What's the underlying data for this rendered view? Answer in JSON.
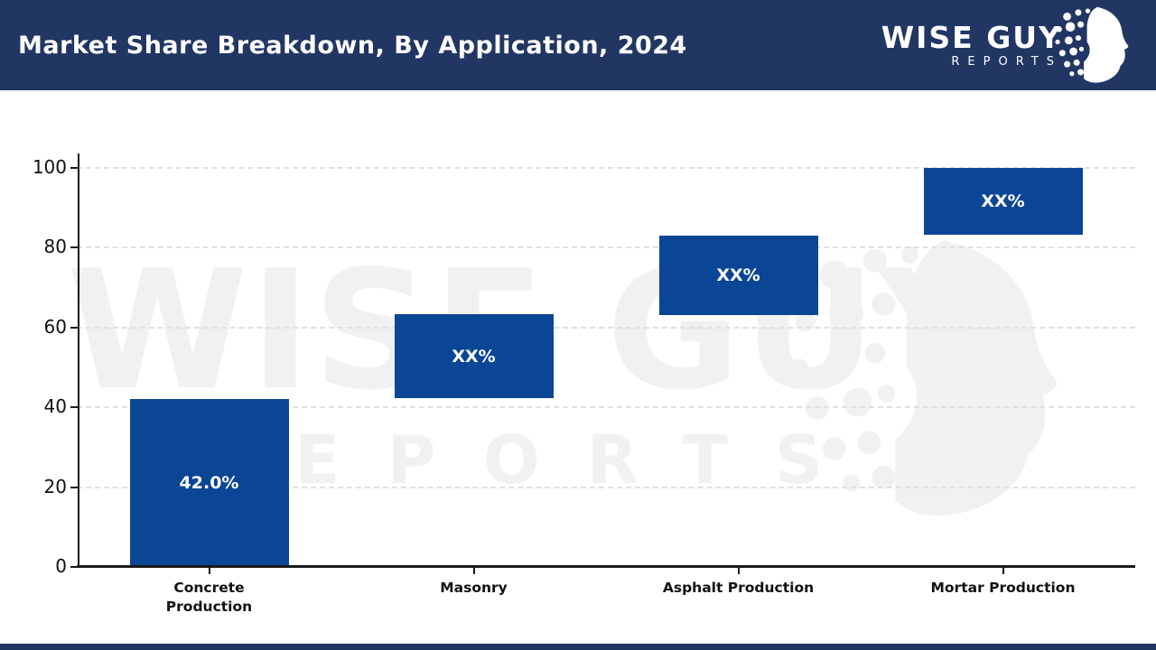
{
  "header": {
    "title": "Market Share Breakdown, By Application, 2024",
    "logo": {
      "line1": "WISE GUY",
      "line2": "REPORTS"
    }
  },
  "watermark": {
    "line1": "WISE GUY",
    "line2": "REPORTS"
  },
  "chart_data": {
    "type": "bar",
    "subtype": "waterfall",
    "title": "Market Share Breakdown, By Application, 2024",
    "categories": [
      "Concrete\nProduction",
      "Masonry",
      "Asphalt Production",
      "Mortar Production"
    ],
    "segments": [
      {
        "category": "Concrete Production",
        "start": 0,
        "end": 42,
        "label": "42.0%"
      },
      {
        "category": "Masonry",
        "start": 42.2,
        "end": 63.4,
        "label": "XX%"
      },
      {
        "category": "Asphalt Production",
        "start": 63.2,
        "end": 83.1,
        "label": "XX%"
      },
      {
        "category": "Mortar Production",
        "start": 83.3,
        "end": 100,
        "label": "XX%"
      }
    ],
    "values_shown": [
      42.0,
      null,
      null,
      null
    ],
    "ylim": [
      0,
      100
    ],
    "yticks": [
      0,
      20,
      40,
      60,
      80,
      100
    ],
    "grid": "horizontal dashed",
    "legend": "none",
    "bar_color": "#0b4696",
    "bar_label_color": "#ffffff",
    "axis_color": "#1a1a1a",
    "gridline_color": "#e0e0e0"
  },
  "footer": {
    "accent_color": "#213663"
  }
}
